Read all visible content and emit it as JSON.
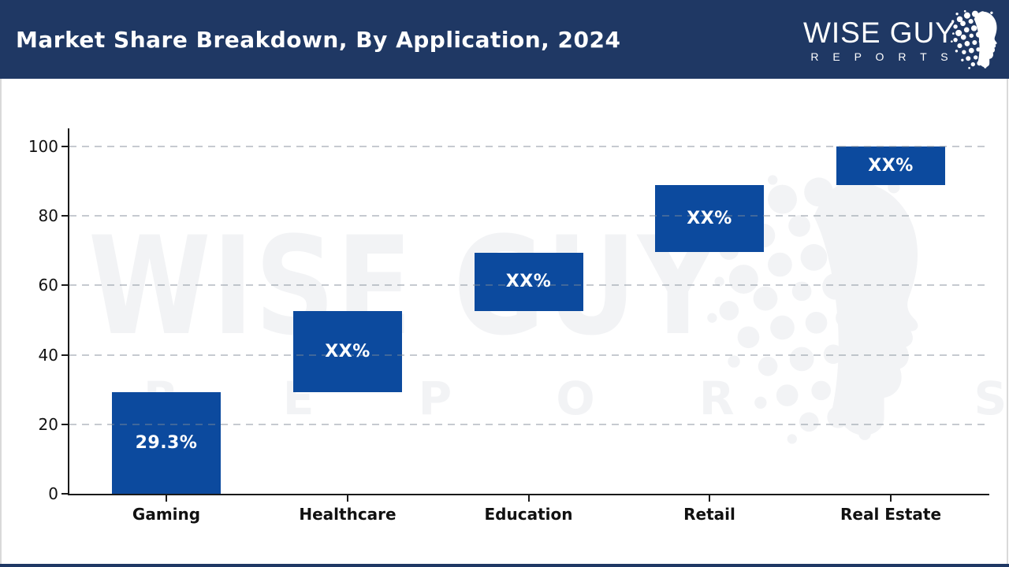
{
  "header": {
    "title": "Market Share Breakdown, By Application, 2024",
    "background_color": "#1f3864",
    "logo": {
      "wordmark": "WISE GUY",
      "subtext": "R E P O R T S",
      "face_icon": "dot-face-profile-icon"
    }
  },
  "watermark": {
    "wordmark": "WISE GUY",
    "subtext": "R E P O R T S",
    "face_icon": "dot-face-profile-icon",
    "color": "#f2f3f5"
  },
  "chart_data": {
    "type": "bar",
    "subtype": "waterfall",
    "title": "Market Share Breakdown, By Application, 2024",
    "categories": [
      "Gaming",
      "Healthcare",
      "Education",
      "Retail",
      "Real Estate"
    ],
    "series": [
      {
        "name": "Market share (%)",
        "segment_start": [
          0,
          29.3,
          52.5,
          69.5,
          89
        ],
        "segment_end": [
          29.3,
          52.5,
          69.5,
          89,
          100
        ],
        "labels": [
          "29.3%",
          "XX%",
          "XX%",
          "XX%",
          "XX%"
        ]
      }
    ],
    "xlabel": "",
    "ylabel": "",
    "ylim": [
      0,
      105
    ],
    "yticks": [
      0,
      20,
      40,
      60,
      80,
      100
    ],
    "grid": "horizontal-dashed-over-bars",
    "legend": "none",
    "bar_color": "#0c4a9e",
    "bar_label_color": "#ffffff",
    "axis_color": "#1a1a1a",
    "grid_color": "#d9d9d9"
  },
  "footer": {
    "bar_color": "#1f3864"
  }
}
